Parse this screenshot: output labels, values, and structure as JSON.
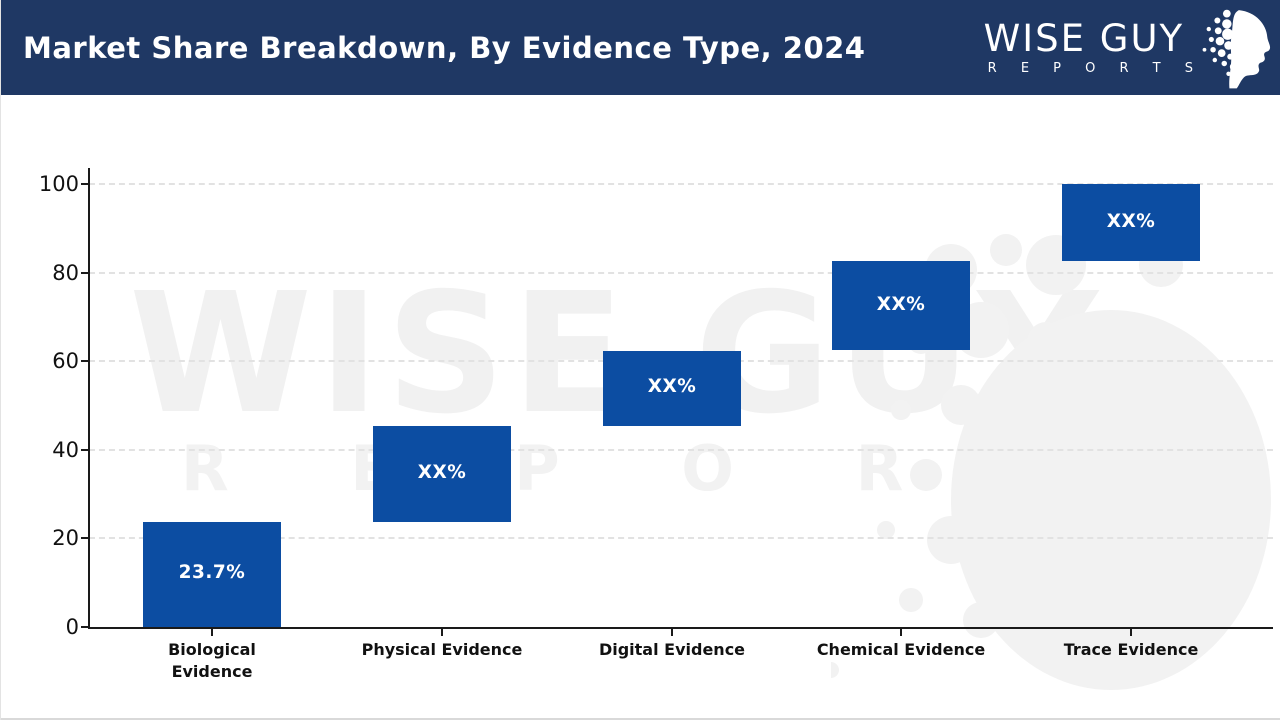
{
  "header": {
    "title": "Market Share Breakdown, By Evidence Type, 2024",
    "bg_color": "#1f3864",
    "logo": {
      "line1": "WISE GUY",
      "line2": "R E P O R T S",
      "face_icon": "dotted-head-profile"
    }
  },
  "watermark": {
    "line1": "WISE GUY",
    "line2": "R E P O R T S",
    "color": "#f1f1f1"
  },
  "chart_data": {
    "type": "bar",
    "subtype": "waterfall-floating-bars",
    "title": "Market Share Breakdown, By Evidence Type, 2024",
    "categories": [
      "Biological\nEvidence",
      "Physical Evidence",
      "Digital Evidence",
      "Chemical Evidence",
      "Trace Evidence"
    ],
    "segments": [
      {
        "category": "Biological Evidence",
        "start": 0,
        "end": 23.7,
        "label": "23.7%"
      },
      {
        "category": "Physical Evidence",
        "start": 23.7,
        "end": 45.3,
        "label": "XX%"
      },
      {
        "category": "Digital Evidence",
        "start": 45.4,
        "end": 62.4,
        "label": "XX%"
      },
      {
        "category": "Chemical Evidence",
        "start": 62.5,
        "end": 82.5,
        "label": "XX%"
      },
      {
        "category": "Trace Evidence",
        "start": 82.5,
        "end": 100,
        "label": "XX%"
      }
    ],
    "yticks": [
      0,
      20,
      40,
      60,
      80,
      100
    ],
    "ylim": [
      0,
      103.6
    ],
    "xlabel": "",
    "ylabel": "",
    "bar_color": "#0c4da2",
    "bar_label_color": "#ffffff",
    "grid": "horizontal-dashed",
    "legend": "none"
  }
}
